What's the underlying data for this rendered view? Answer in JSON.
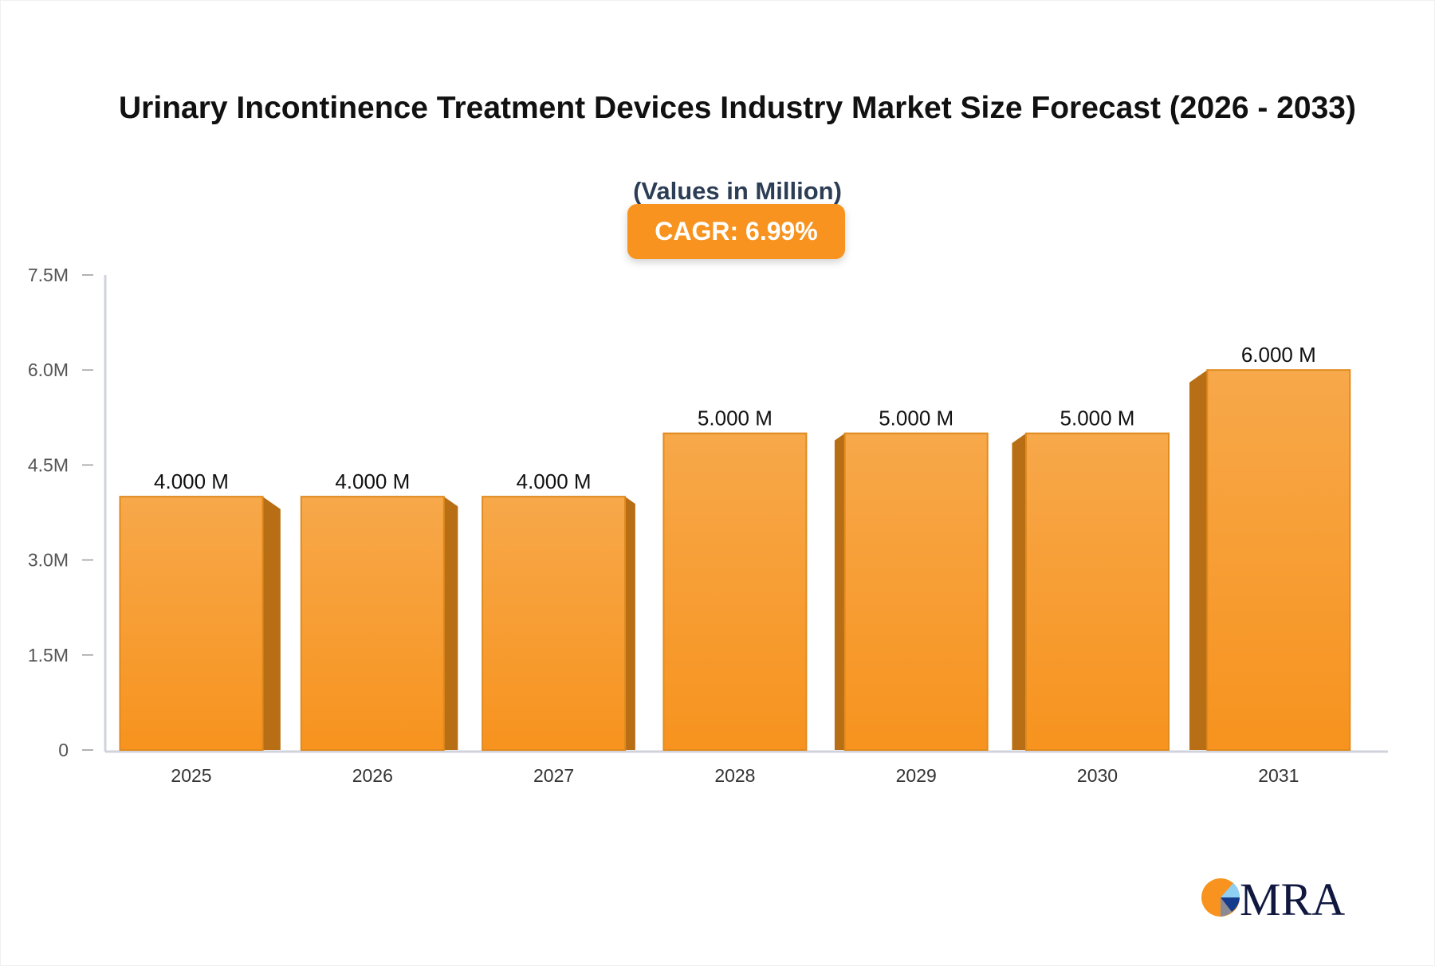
{
  "chart_data": {
    "type": "bar",
    "title": "Urinary Incontinence Treatment Devices Industry Market Size Forecast (2026 - 2033)",
    "subtitle": "(Values in Million)",
    "annotation": "CAGR: 6.99%",
    "categories": [
      "2025",
      "2026",
      "2027",
      "2028",
      "2029",
      "2030",
      "2031"
    ],
    "values": [
      4.0,
      4.0,
      4.0,
      5.0,
      5.0,
      5.0,
      6.0
    ],
    "data_labels": [
      "4.000 M",
      "4.000 M",
      "4.000 M",
      "5.000 M",
      "5.000 M",
      "5.000 M",
      "6.000 M"
    ],
    "yticks": [
      0,
      1.5,
      3.0,
      4.5,
      6.0,
      7.5
    ],
    "ytick_labels": [
      "0",
      "1.5M",
      "3.0M",
      "4.5M",
      "6.0M",
      "7.5M"
    ],
    "ylim": [
      0,
      7.5
    ],
    "xlabel": "",
    "ylabel": "",
    "grid": false,
    "colors": {
      "bar_top": "#f7a84a",
      "bar_bottom": "#f7931e",
      "bar_side": "#b86e14",
      "bar_edge": "#e08a1e",
      "axis": "#d0d3db"
    }
  },
  "logo": {
    "text": "MRA"
  }
}
